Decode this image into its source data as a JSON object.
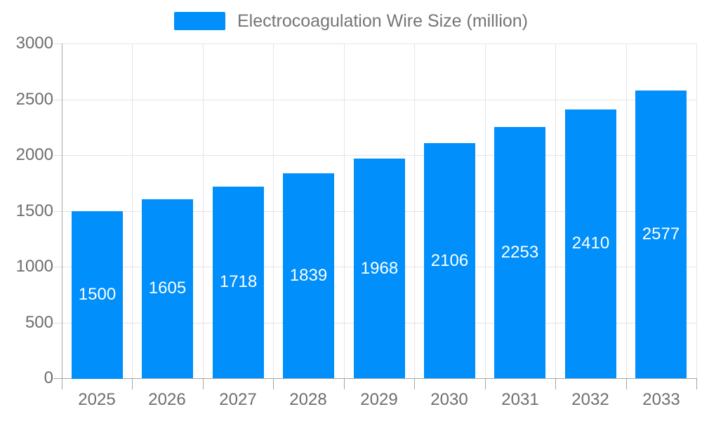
{
  "chart_data": {
    "type": "bar",
    "title": "Electrocoagulation Wire Size (million)",
    "categories": [
      "2025",
      "2026",
      "2027",
      "2028",
      "2029",
      "2030",
      "2031",
      "2032",
      "2033"
    ],
    "series": [
      {
        "name": "Electrocoagulation Wire Size (million)",
        "values": [
          1500,
          1605,
          1718,
          1839,
          1968,
          2106,
          2253,
          2410,
          2577
        ]
      }
    ],
    "xlabel": "",
    "ylabel": "",
    "ylim": [
      0,
      3000
    ],
    "ytick_step": 500,
    "grid": true,
    "legend_position": "top",
    "data_labels": "centered-white",
    "colors": {
      "bar": "#008FFB",
      "bar_label": "#ffffff",
      "gridline": "#e4e4e4",
      "tick_light": "#e0e0e0",
      "axis_line": "#a6a6a6",
      "axis_label": "#6e6e6e",
      "legend_text": "#757575",
      "background": "#ffffff"
    }
  }
}
